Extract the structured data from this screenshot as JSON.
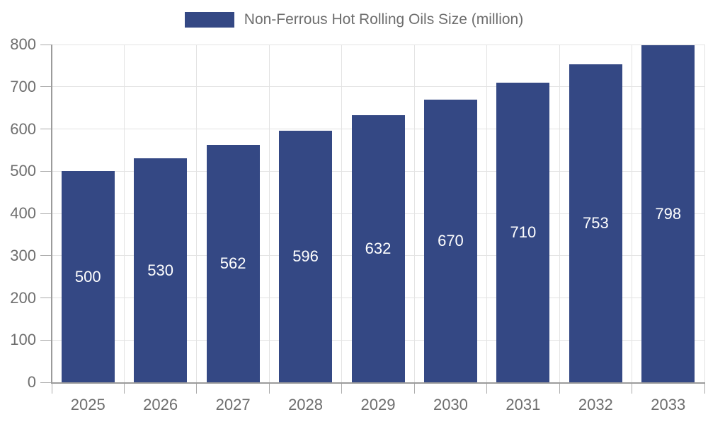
{
  "legend": {
    "items": [
      {
        "label": "Non-Ferrous Hot Rolling Oils Size (million)",
        "color": "#344884"
      }
    ],
    "position": "top-center"
  },
  "colors": {
    "background": "#ffffff",
    "bar": "#344884",
    "axis_line": "#9b9b9b",
    "grid_line": "#e3e3e3",
    "tick_mark": "#ababab",
    "tick_text": "#6e6e6e",
    "value_label": "#ffffff"
  },
  "chart_data": {
    "type": "bar",
    "title": "Non-Ferrous Hot Rolling Oils Size (million)",
    "series_name": "Non-Ferrous Hot Rolling Oils Size (million)",
    "categories": [
      "2025",
      "2026",
      "2027",
      "2028",
      "2029",
      "2030",
      "2031",
      "2032",
      "2033"
    ],
    "values": [
      500,
      530,
      562,
      596,
      632,
      670,
      710,
      753,
      798
    ],
    "xlabel": "",
    "ylabel": "",
    "ylim": [
      0,
      800
    ],
    "ytick_step": 100,
    "yticks": [
      0,
      100,
      200,
      300,
      400,
      500,
      600,
      700,
      800
    ],
    "grid": true,
    "vertical_gridlines": true,
    "legend_position": "top",
    "value_label_position": "inside-center",
    "value_label_color": "#ffffff",
    "bar_color": "#344884"
  }
}
